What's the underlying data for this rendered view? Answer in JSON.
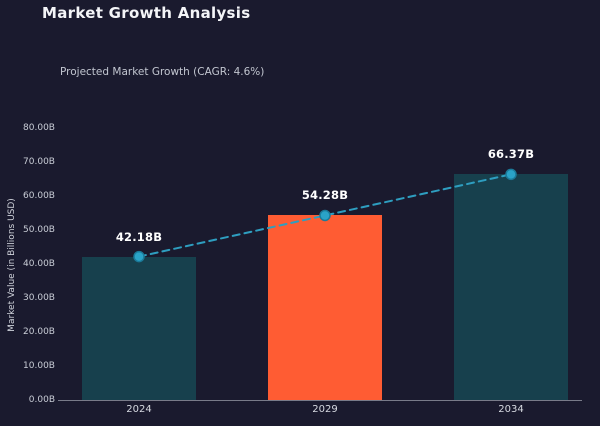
{
  "chart_data": {
    "type": "bar",
    "title": "Market Growth Analysis",
    "subtitle": "Projected Market Growth (CAGR: 4.6%)",
    "xlabel": "",
    "ylabel": "Market Value (in Billions USD)",
    "categories": [
      "2024",
      "2029",
      "2034"
    ],
    "series": [
      {
        "name": "Market Value",
        "type": "bar",
        "values": [
          42.18,
          54.28,
          66.37
        ]
      },
      {
        "name": "Projected Trend",
        "type": "dashed-line",
        "values": [
          42.18,
          54.28,
          66.37
        ]
      }
    ],
    "data_labels": [
      "42.18B",
      "54.28B",
      "66.37B"
    ],
    "ylim": [
      0,
      80
    ],
    "ytick_step": 10,
    "ytick_labels": [
      "0.00B",
      "10.00B",
      "20.00B",
      "30.00B",
      "40.00B",
      "50.00B",
      "60.00B",
      "70.00B",
      "80.00B"
    ],
    "grid": false,
    "legend": "none",
    "colors": {
      "background": "#1a1a2e",
      "bar_colors": [
        "#17404d",
        "#ff5c33",
        "#17404d"
      ],
      "line": "#2e9ec0",
      "marker_fill": "#2aa3c8",
      "marker_stroke": "#1b7a99",
      "label_text": "#ffffff",
      "tick_text": "#c9cdd6",
      "axis_line": "#c8ccd6"
    }
  }
}
